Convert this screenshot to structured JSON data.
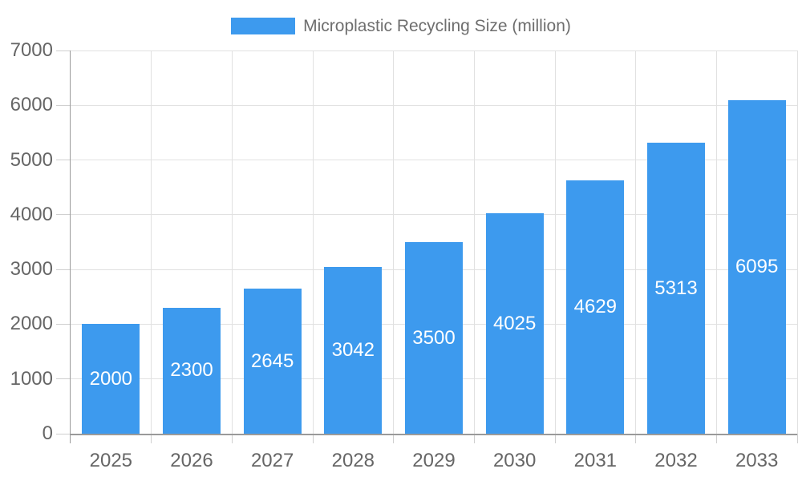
{
  "legend": {
    "label": "Microplastic Recycling Size (million)"
  },
  "colors": {
    "bar": "#3D9AEE",
    "axis_line": "#9A9A9A",
    "grid_line": "#E1E1E1",
    "tick_line": "#CFCFCF",
    "axis_text": "#666666",
    "legend_text": "#6E6E6E",
    "value_text": "#FFFFFF",
    "background": "#FFFFFF"
  },
  "chart_data": {
    "type": "bar",
    "title": "Microplastic Recycling Size (million)",
    "categories": [
      "2025",
      "2026",
      "2027",
      "2028",
      "2029",
      "2030",
      "2031",
      "2032",
      "2033"
    ],
    "values": [
      2000,
      2300,
      2645,
      3042,
      3500,
      4025,
      4629,
      5313,
      6095
    ],
    "xlabel": "",
    "ylabel": "",
    "ylim": [
      0,
      7000
    ],
    "yticks": [
      0,
      1000,
      2000,
      3000,
      4000,
      5000,
      6000,
      7000
    ],
    "grid": true,
    "legend_position": "top",
    "value_labels": "inside-center"
  }
}
